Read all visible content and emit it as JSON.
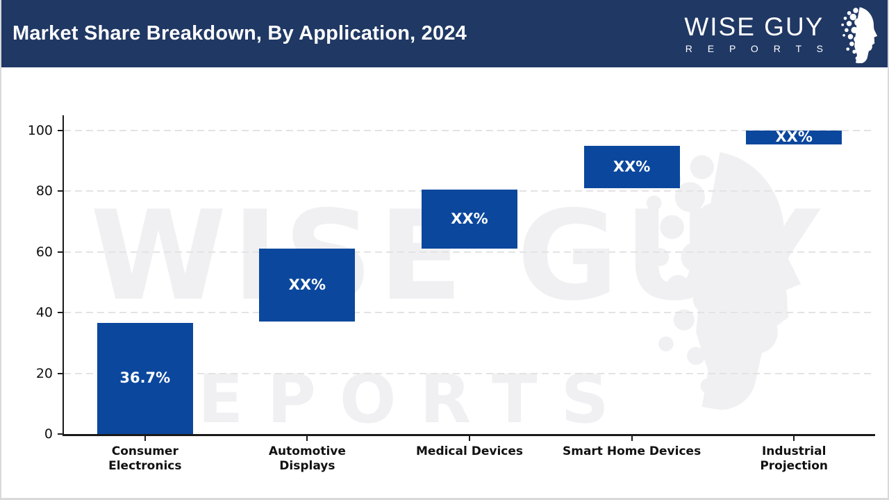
{
  "header": {
    "title": "Market Share Breakdown, By Application, 2024",
    "logo_line1": "WISE GUY",
    "logo_line2": "R E P O R T S"
  },
  "watermark": {
    "line1": "WISE GUY",
    "line2": "REPORTS"
  },
  "colors": {
    "header_bg": "#203864",
    "bar": "#0b479d",
    "gridline": "#e3e3e3",
    "axis": "#1a1a1a",
    "watermark": "#f0f0f2",
    "value_label": "#ffffff"
  },
  "chart_data": {
    "type": "bar",
    "variant": "waterfall",
    "title": "Market Share Breakdown, By Application, 2024",
    "xlabel": "",
    "ylabel": "",
    "ylim": [
      0,
      105
    ],
    "yticks": [
      0,
      20,
      40,
      60,
      80,
      100
    ],
    "grid": "horizontal-dashed",
    "legend": "none",
    "categories": [
      "Consumer\nElectronics",
      "Automotive\nDisplays",
      "Medical Devices",
      "Smart Home Devices",
      "Industrial\nProjection"
    ],
    "segments": [
      {
        "category": "Consumer Electronics",
        "start": 0,
        "end": 36.7,
        "label": "36.7%"
      },
      {
        "category": "Automotive Displays",
        "start": 37,
        "end": 61,
        "label": "XX%"
      },
      {
        "category": "Medical Devices",
        "start": 61,
        "end": 80.5,
        "label": "XX%"
      },
      {
        "category": "Smart Home Devices",
        "start": 81,
        "end": 95,
        "label": "XX%"
      },
      {
        "category": "Industrial Projection",
        "start": 95.5,
        "end": 100,
        "label": "XX%"
      }
    ]
  }
}
